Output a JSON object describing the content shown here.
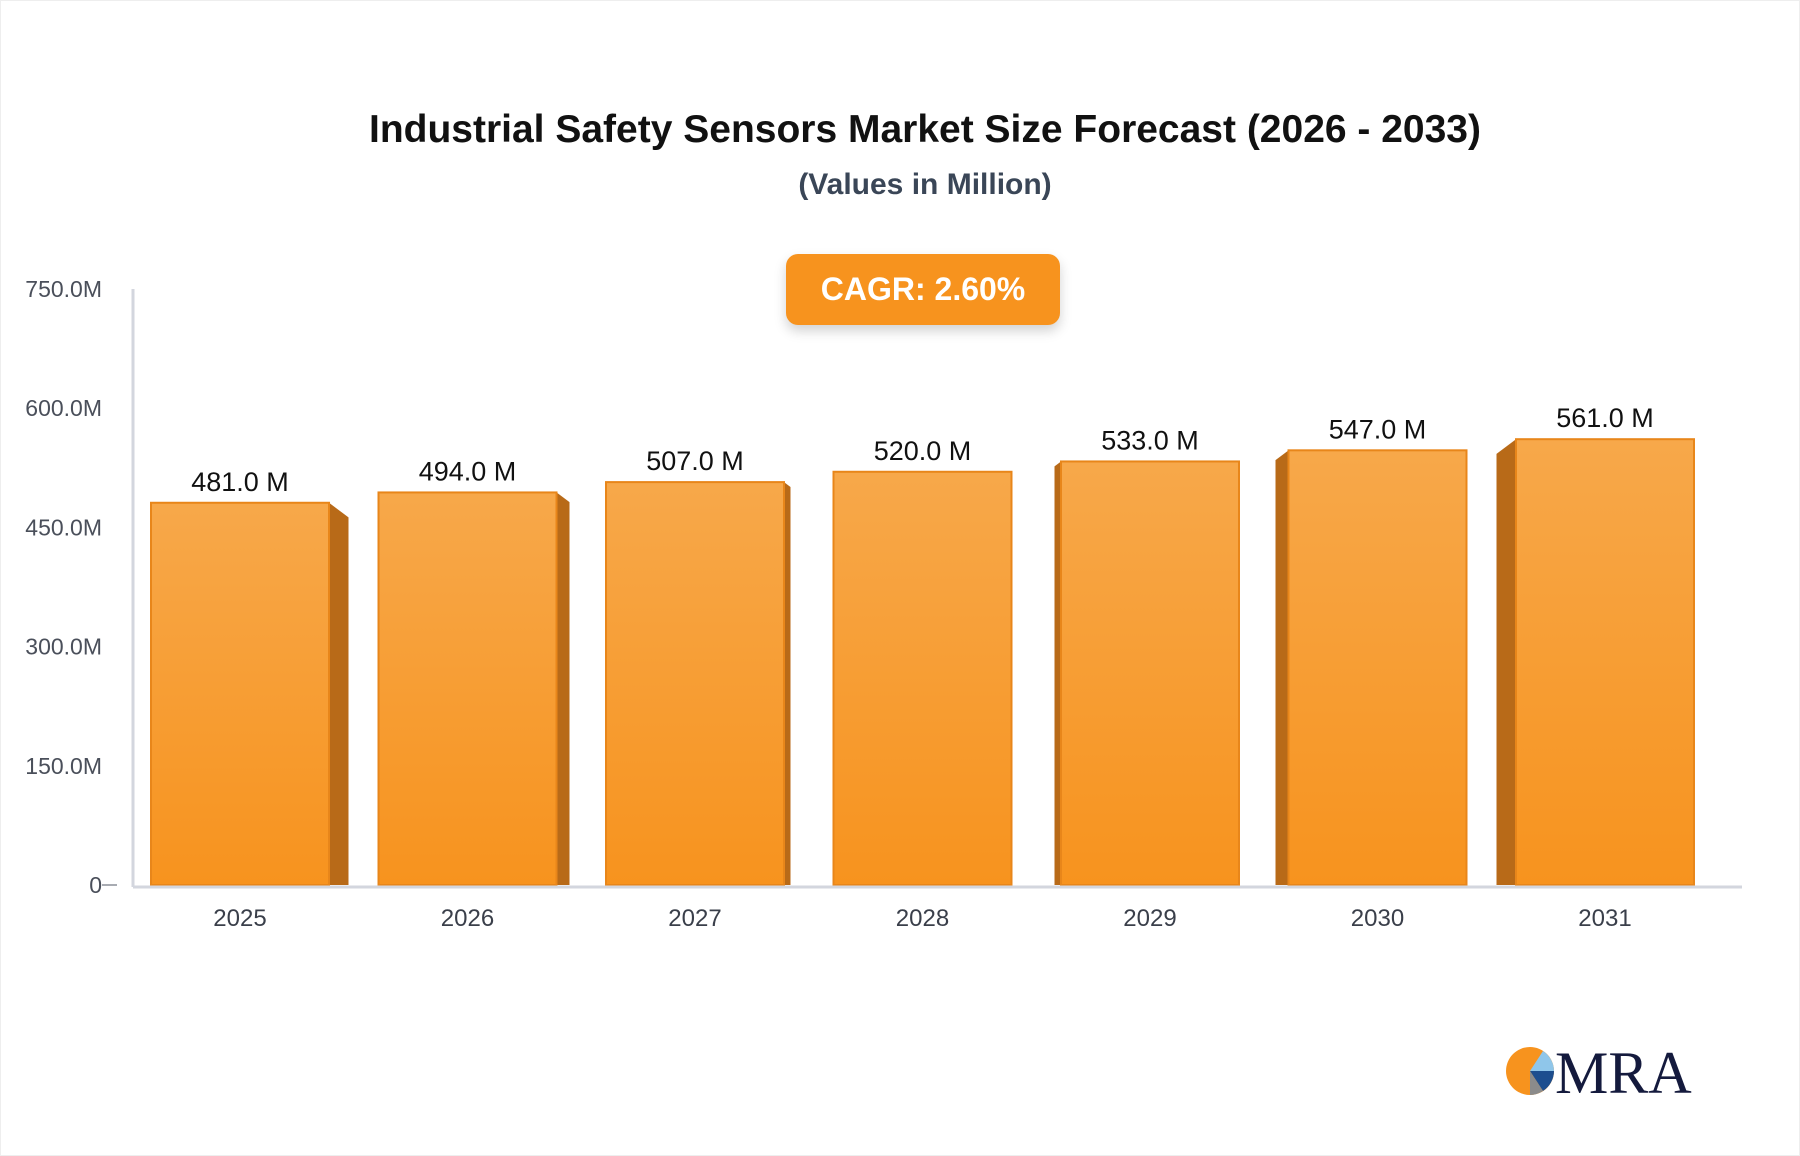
{
  "chart_data": {
    "type": "bar",
    "title": "Industrial Safety Sensors Market Size Forecast (2026 - 2033)",
    "subtitle": "(Values in Million)",
    "annotation": "CAGR: 2.60%",
    "categories": [
      "2025",
      "2026",
      "2027",
      "2028",
      "2029",
      "2030",
      "2031"
    ],
    "values": [
      481.0,
      494.0,
      507.0,
      520.0,
      533.0,
      547.0,
      561.0
    ],
    "data_labels": [
      "481.0 M",
      "494.0 M",
      "507.0 M",
      "520.0 M",
      "533.0 M",
      "547.0 M",
      "561.0 M"
    ],
    "y_ticks": [
      0,
      150,
      300,
      450,
      600,
      750
    ],
    "y_tick_labels": [
      "0",
      "150.0M",
      "300.0M",
      "450.0M",
      "600.0M",
      "750.0M"
    ],
    "ylim": [
      0,
      750
    ],
    "xlabel": "",
    "ylabel": "",
    "grid": false,
    "colors": {
      "bar_top": "#f7a84a",
      "bar_bottom": "#f7931e",
      "bar_side": "#b86a18",
      "accent": "#f7931e"
    }
  },
  "logo": {
    "text": "MRA"
  }
}
